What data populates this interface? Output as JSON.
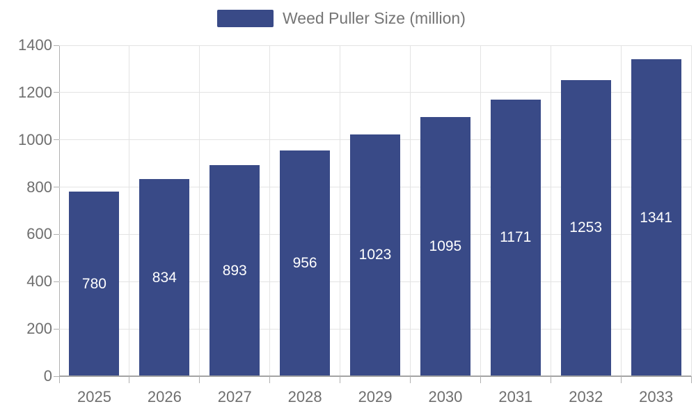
{
  "chart_data": {
    "type": "bar",
    "title": "Weed Puller Size (million)",
    "legend": [
      "Weed Puller Size (million)"
    ],
    "legend_position": "top",
    "categories": [
      "2025",
      "2026",
      "2027",
      "2028",
      "2029",
      "2030",
      "2031",
      "2032",
      "2033"
    ],
    "values": [
      780,
      834,
      893,
      956,
      1023,
      1095,
      1171,
      1253,
      1341
    ],
    "xlabel": "",
    "ylabel": "",
    "ylim": [
      0,
      1400
    ],
    "yticks": [
      0,
      200,
      400,
      600,
      800,
      1000,
      1200,
      1400
    ],
    "grid": true,
    "colors": {
      "bar": "#394a87",
      "bar_value_label": "#ffffff",
      "legend_text": "#757575",
      "axis_tick_label": "#6e6e6e",
      "gridline": "#e3e3e3",
      "axis_line": "#b0b0b0",
      "bottom_axis_line": "#a3a3a3",
      "background": "#ffffff"
    }
  }
}
